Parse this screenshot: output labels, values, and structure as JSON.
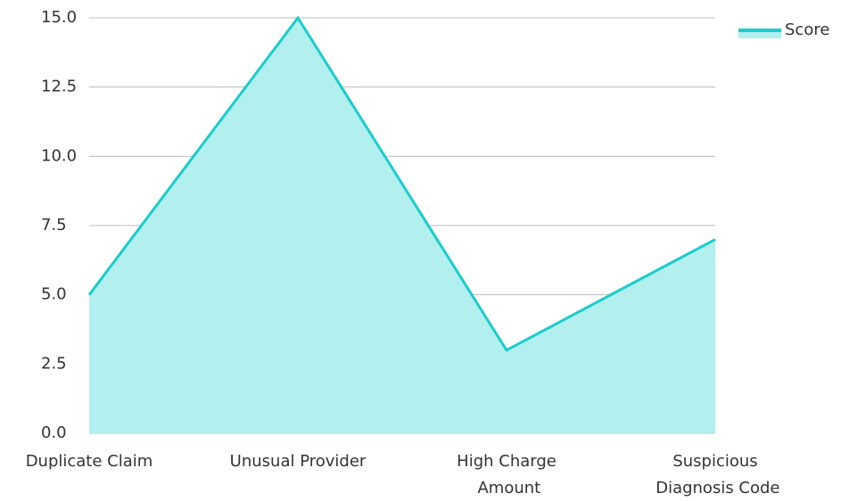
{
  "chart_data": {
    "type": "area",
    "categories": [
      "Duplicate Claim",
      "Unusual Provider",
      "High Charge Amount",
      "Suspicious Diagnosis Code"
    ],
    "series": [
      {
        "name": "Score",
        "color": "#1ccccc",
        "fill": "#b2efef",
        "values": [
          5,
          15,
          3,
          7
        ]
      }
    ],
    "ylim": [
      0,
      15
    ],
    "yticks": [
      {
        "value": 0,
        "label": "0.0"
      },
      {
        "value": 2.5,
        "label": "2.5"
      },
      {
        "value": 5,
        "label": "5.0"
      },
      {
        "value": 7.5,
        "label": "7.5"
      },
      {
        "value": 10,
        "label": "10.0"
      },
      {
        "value": 12.5,
        "label": "12.5"
      },
      {
        "value": 15,
        "label": "15.0"
      }
    ],
    "grid": true,
    "legend": "top-right"
  }
}
